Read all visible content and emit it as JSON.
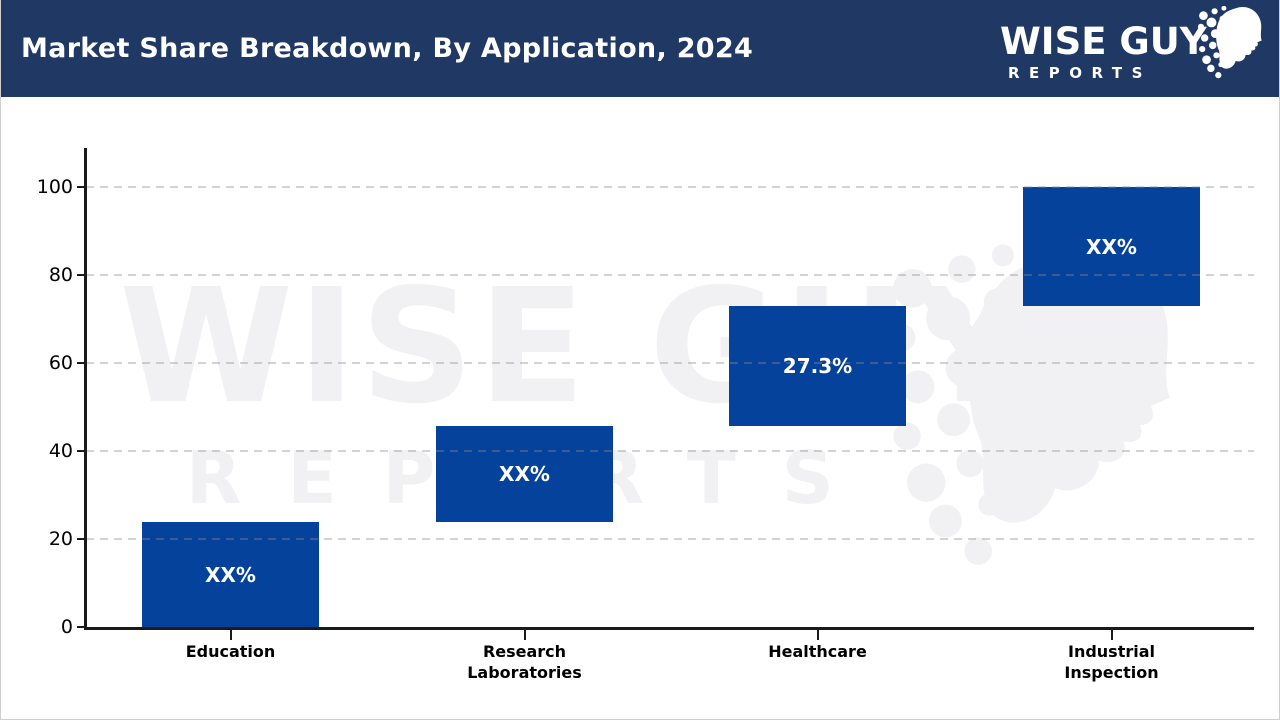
{
  "header": {
    "title": "Market Share Breakdown, By Application, 2024",
    "logo": {
      "wordmark": "WISE GUY",
      "subtext": "REPORTS"
    }
  },
  "watermark": {
    "wordmark": "WISE GUY",
    "subtext": "REPORTS"
  },
  "chart_data": {
    "type": "bar",
    "variant": "floating-segment-waterfall",
    "title": "Market Share Breakdown, By Application, 2024",
    "categories": [
      "Education",
      "Research Laboratories",
      "Healthcare",
      "Industrial Inspection"
    ],
    "category_label_lines": [
      [
        "Education"
      ],
      [
        "Research",
        "Laboratories"
      ],
      [
        "Healthcare"
      ],
      [
        "Industrial",
        "Inspection"
      ]
    ],
    "segments": [
      {
        "category": "Education",
        "start": 0,
        "end": 23.8,
        "label": "XX%"
      },
      {
        "category": "Research Laboratories",
        "start": 23.8,
        "end": 45.6,
        "label": "XX%"
      },
      {
        "category": "Healthcare",
        "start": 45.6,
        "end": 72.9,
        "label": "27.3%"
      },
      {
        "category": "Industrial Inspection",
        "start": 72.9,
        "end": 100,
        "label": "XX%"
      }
    ],
    "ylim": [
      0,
      100
    ],
    "yticks": [
      0,
      20,
      40,
      60,
      80,
      100
    ],
    "xlabel": "",
    "ylabel": "",
    "grid": "dashed-horizontal",
    "legend": "none",
    "bar_color": "#05429B",
    "label_color": "#FFFFFF",
    "axis_color": "#1A1A1A",
    "header_bg": "#1F3864"
  }
}
